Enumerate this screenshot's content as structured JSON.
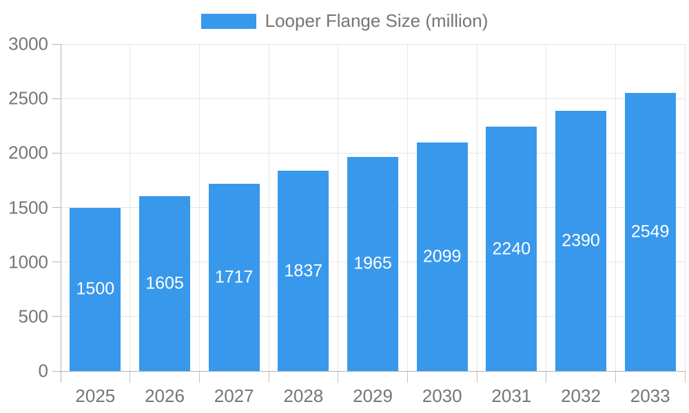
{
  "chart_data": {
    "type": "bar",
    "title": "",
    "legend": {
      "position": "top",
      "entries": [
        {
          "label": "Looper Flange Size (million)",
          "color": "#3898ec"
        }
      ]
    },
    "categories": [
      "2025",
      "2026",
      "2027",
      "2028",
      "2029",
      "2030",
      "2031",
      "2032",
      "2033"
    ],
    "series": [
      {
        "name": "Looper Flange Size (million)",
        "values": [
          1500,
          1605,
          1717,
          1837,
          1965,
          2099,
          2240,
          2390,
          2549
        ],
        "color": "#3898ec"
      }
    ],
    "value_labels": {
      "visible": true,
      "color": "#ffffff",
      "position": "center-of-bar"
    },
    "xlabel": "",
    "ylabel": "",
    "ylim": [
      0,
      3000
    ],
    "y_ticks": [
      0,
      500,
      1000,
      1500,
      2000,
      2500,
      3000
    ],
    "grid": true,
    "colors": {
      "bar": "#3898ec",
      "grid_line": "#e6e6e6",
      "axis_line": "#b3b3b3",
      "tick_line": "#c2c2c2",
      "axis_text": "#757575",
      "bar_label_text": "#ffffff",
      "background": "#ffffff"
    }
  }
}
